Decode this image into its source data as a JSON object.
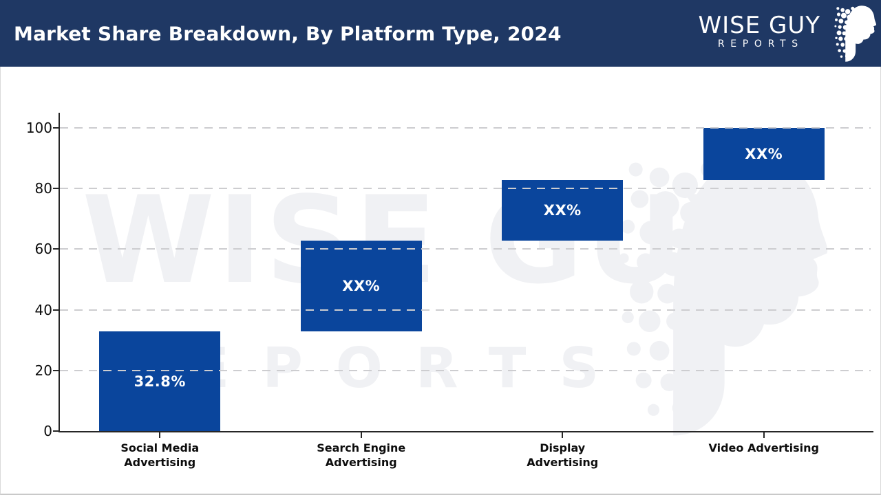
{
  "header": {
    "title": "Market Share Breakdown, By Platform Type, 2024",
    "background_color": "#1f3864",
    "logo": {
      "line1": "WISE GUY",
      "line2": "REPORTS",
      "icon": "dotted-head-profile"
    }
  },
  "watermark": {
    "line1": "WISE GUY",
    "line2": "REPORTS",
    "icon": "dotted-head-profile"
  },
  "chart_data": {
    "type": "bar",
    "subtype": "waterfall",
    "title": "Market Share Breakdown, By Platform Type, 2024",
    "xlabel": "",
    "ylabel": "",
    "ylim": [
      0,
      100
    ],
    "yticks": [
      0,
      20,
      40,
      60,
      80,
      100
    ],
    "grid": "horizontal-dashed",
    "grid_color": "#cdcdd0",
    "bar_color": "#0a459c",
    "value_label_color": "#ffffff",
    "categories": [
      [
        "Social Media",
        "Advertising"
      ],
      [
        "Search Engine",
        "Advertising"
      ],
      [
        "Display",
        "Advertising"
      ],
      [
        "Video Advertising"
      ]
    ],
    "segments": [
      {
        "category": "Social Media Advertising",
        "start": 0,
        "end": 32.8,
        "label": "32.8%"
      },
      {
        "category": "Search Engine Advertising",
        "start": 32.8,
        "end": 62.7,
        "label": "XX%"
      },
      {
        "category": "Display Advertising",
        "start": 62.7,
        "end": 82.8,
        "label": "XX%"
      },
      {
        "category": "Video Advertising",
        "start": 82.8,
        "end": 100,
        "label": "XX%"
      }
    ]
  }
}
